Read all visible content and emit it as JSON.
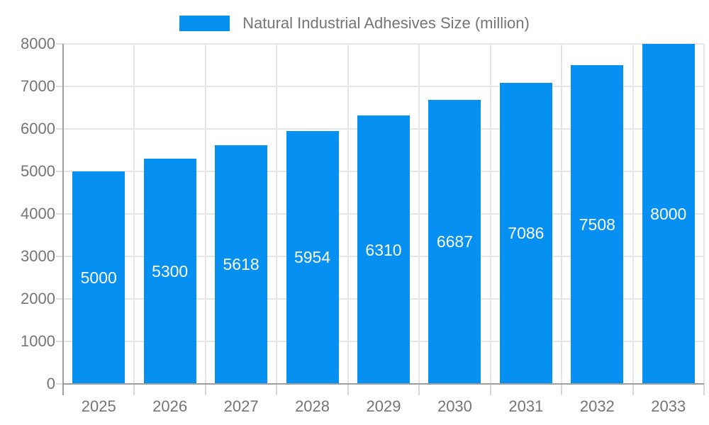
{
  "chart_data": {
    "type": "bar",
    "title": "Natural Industrial Adhesives Size (million)",
    "legend": {
      "label": "Natural Industrial Adhesives Size (million)",
      "position": "top"
    },
    "categories": [
      "2025",
      "2026",
      "2027",
      "2028",
      "2029",
      "2030",
      "2031",
      "2032",
      "2033"
    ],
    "series": [
      {
        "name": "Natural Industrial Adhesives Size (million)",
        "values": [
          5000,
          5300,
          5618,
          5954,
          6310,
          6687,
          7086,
          7508,
          8000
        ]
      }
    ],
    "bar_value_labels": [
      "5000",
      "5300",
      "5618",
      "5954",
      "6310",
      "6687",
      "7086",
      "7508",
      "8000"
    ],
    "xlabel": "",
    "ylabel": "",
    "ylim": [
      0,
      8000
    ],
    "y_ticks": [
      0,
      1000,
      2000,
      3000,
      4000,
      5000,
      6000,
      7000,
      8000
    ],
    "grid": "horizontal and vertical gridlines on"
  },
  "colors": {
    "bar": "#0590f2",
    "axis_text": "#757575",
    "value_text": "#ffffff",
    "gridline": "#e6e6e6",
    "axis_line": "#9e9e9e",
    "background": "#ffffff"
  }
}
